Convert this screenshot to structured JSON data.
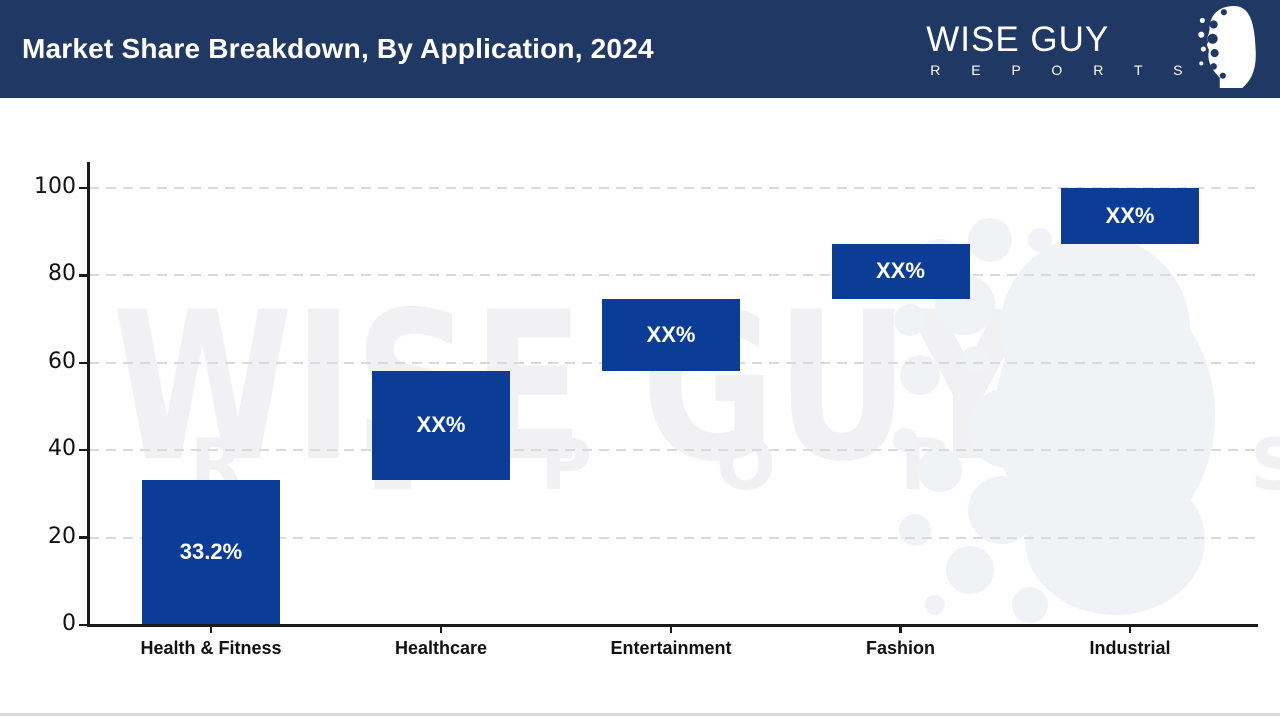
{
  "header": {
    "title": "Market Share Breakdown, By Application, 2024",
    "bg_color": "#203864",
    "logo": {
      "line1": "WISE GUY",
      "line2": "R E P O R T S"
    }
  },
  "watermark": {
    "line1": "WISE GUY",
    "line2": "R E P O R T S"
  },
  "chart_data": {
    "type": "bar",
    "subtype": "waterfall",
    "title": "Market Share Breakdown, By Application, 2024",
    "categories": [
      "Health & Fitness",
      "Healthcare",
      "Entertainment",
      "Fashion",
      "Industrial"
    ],
    "segments": [
      {
        "category": "Health & Fitness",
        "start": 0,
        "end": 33.2,
        "label": "33.2%"
      },
      {
        "category": "Healthcare",
        "start": 33.2,
        "end": 58.2,
        "label": "XX%"
      },
      {
        "category": "Entertainment",
        "start": 58.2,
        "end": 74.7,
        "label": "XX%"
      },
      {
        "category": "Fashion",
        "start": 74.7,
        "end": 87.2,
        "label": "XX%"
      },
      {
        "category": "Industrial",
        "start": 87.2,
        "end": 100,
        "label": "XX%"
      }
    ],
    "y_ticks": [
      0,
      20,
      40,
      60,
      80,
      100
    ],
    "ylim": [
      0,
      104
    ],
    "xlabel": "",
    "ylabel": "",
    "grid": "horizontal-dashed",
    "legend": "none",
    "bar_color": "#0b3d96",
    "bar_label_color": "#ffffff",
    "axis_color": "#1a1a1a",
    "grid_color": "#dadada"
  }
}
